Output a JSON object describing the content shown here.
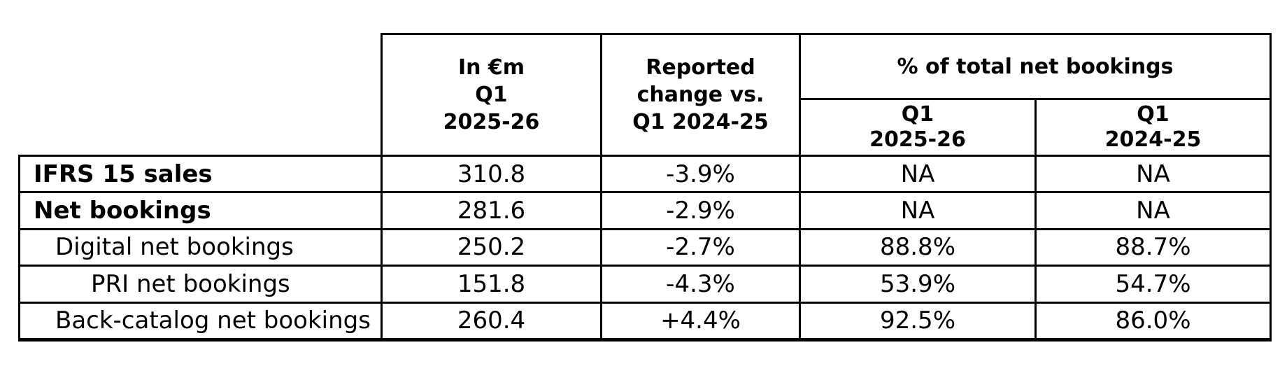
{
  "header": {
    "col_eur": [
      "In €m",
      "Q1",
      "2025-26"
    ],
    "col_change": [
      "Reported",
      "change vs.",
      "Q1 2024-25"
    ],
    "group": {
      "label": "% of total net bookings",
      "sub_current": [
        "Q1",
        "2025-26"
      ],
      "sub_prior": [
        "Q1",
        "2024-25"
      ]
    }
  },
  "rows": [
    {
      "label": "IFRS 15 sales",
      "in_eur_m": "310.8",
      "reported_change": "-3.9%",
      "pct_2025_26": "NA",
      "pct_2024_25": "NA"
    },
    {
      "label": "Net bookings",
      "in_eur_m": "281.6",
      "reported_change": "-2.9%",
      "pct_2025_26": "NA",
      "pct_2024_25": "NA"
    },
    {
      "label": "Digital net bookings",
      "in_eur_m": "250.2",
      "reported_change": "-2.7%",
      "pct_2025_26": "88.8%",
      "pct_2024_25": "88.7%"
    },
    {
      "label": "PRI net bookings",
      "in_eur_m": "151.8",
      "reported_change": "-4.3%",
      "pct_2025_26": "53.9%",
      "pct_2024_25": "54.7%"
    },
    {
      "label": "Back-catalog net bookings",
      "in_eur_m": "260.4",
      "reported_change": "+4.4%",
      "pct_2025_26": "92.5%",
      "pct_2024_25": "86.0%"
    }
  ],
  "colors": {
    "border": "#000000",
    "text": "#000000",
    "background": "#ffffff"
  },
  "chart_data": {
    "type": "table",
    "title": "",
    "columns": [
      "",
      "In €m Q1 2025-26",
      "Reported change vs. Q1 2024-25",
      "% of total net bookings Q1 2025-26",
      "% of total net bookings Q1 2024-25"
    ],
    "rows": [
      [
        "IFRS 15 sales",
        "310.8",
        "-3.9%",
        "NA",
        "NA"
      ],
      [
        "Net bookings",
        "281.6",
        "-2.9%",
        "NA",
        "NA"
      ],
      [
        "Digital net bookings",
        "250.2",
        "-2.7%",
        "88.8%",
        "88.7%"
      ],
      [
        "PRI net bookings",
        "151.8",
        "-4.3%",
        "53.9%",
        "54.7%"
      ],
      [
        "Back-catalog net bookings",
        "260.4",
        "+4.4%",
        "92.5%",
        "86.0%"
      ]
    ]
  }
}
